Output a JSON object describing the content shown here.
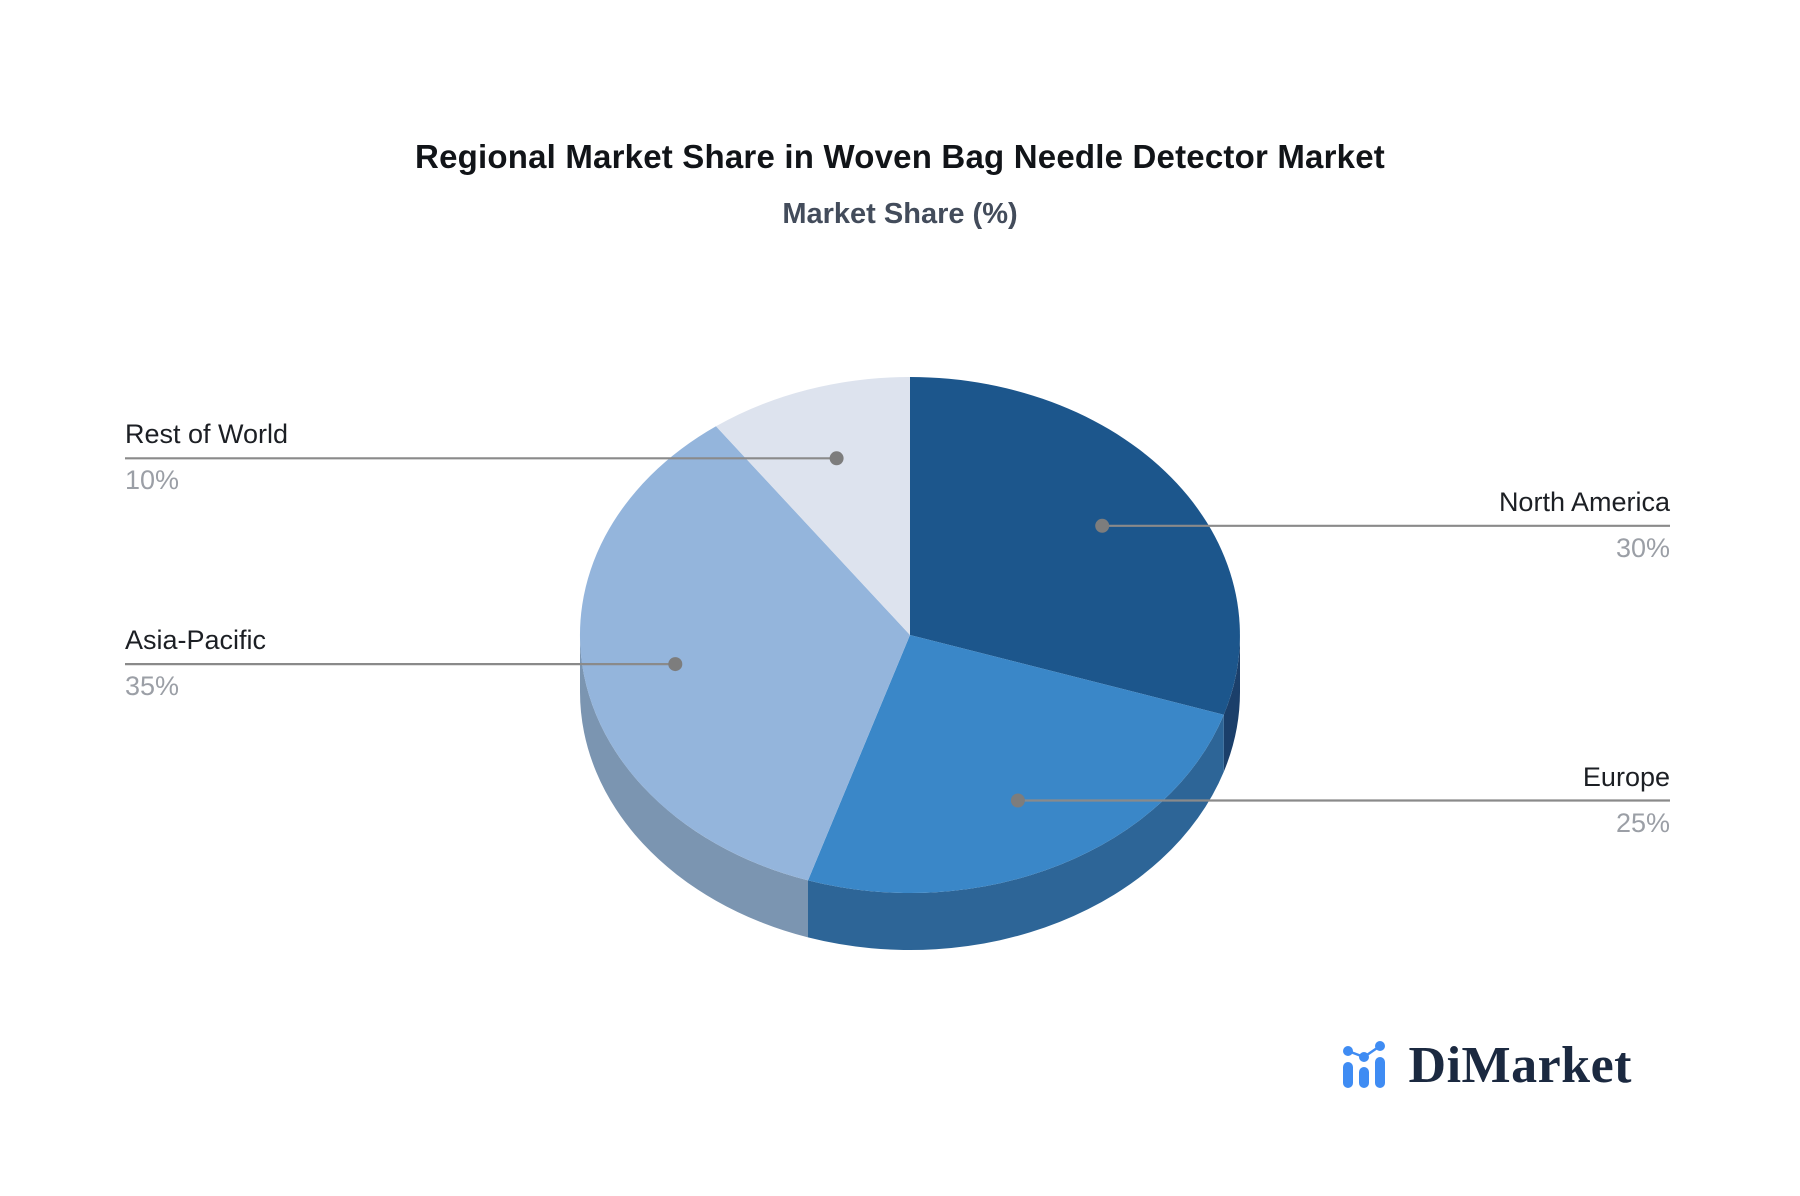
{
  "header": {
    "title": "Regional Market Share in Woven Bag Needle Detector Market",
    "subtitle": "Market Share (%)"
  },
  "chart_data": {
    "type": "pie",
    "style": "3d",
    "title": "Regional Market Share in Woven Bag Needle Detector Market",
    "subtitle": "Market Share (%)",
    "unit": "%",
    "start_angle_deg": 0,
    "direction": "clockwise",
    "legend_position": "none",
    "categories": [
      "North America",
      "Europe",
      "Asia-Pacific",
      "Rest of World"
    ],
    "values": [
      30,
      25,
      35,
      10
    ],
    "slices": [
      {
        "label": "North America",
        "value": 30,
        "display": "30%",
        "color": "#1c568c",
        "side_color": "#1b3f6a",
        "label_side": "right"
      },
      {
        "label": "Europe",
        "value": 25,
        "display": "25%",
        "color": "#3a87c8",
        "side_color": "#2d6597",
        "label_side": "right"
      },
      {
        "label": "Asia-Pacific",
        "value": 35,
        "display": "35%",
        "color": "#94b5dc",
        "side_color": "#7b95b1",
        "label_side": "left"
      },
      {
        "label": "Rest of World",
        "value": 10,
        "display": "10%",
        "color": "#dde3ee",
        "side_color": "#b9c4d6",
        "label_side": "left"
      }
    ],
    "leader_line_color": "#8a8a8a",
    "label_text_color": "#1c1f24",
    "percent_text_color": "#9b9fa6"
  },
  "branding": {
    "logo_text": "DiMarket",
    "logo_icon": "bar-line-chart-icon",
    "logo_accent_color": "#3f8cf3"
  }
}
